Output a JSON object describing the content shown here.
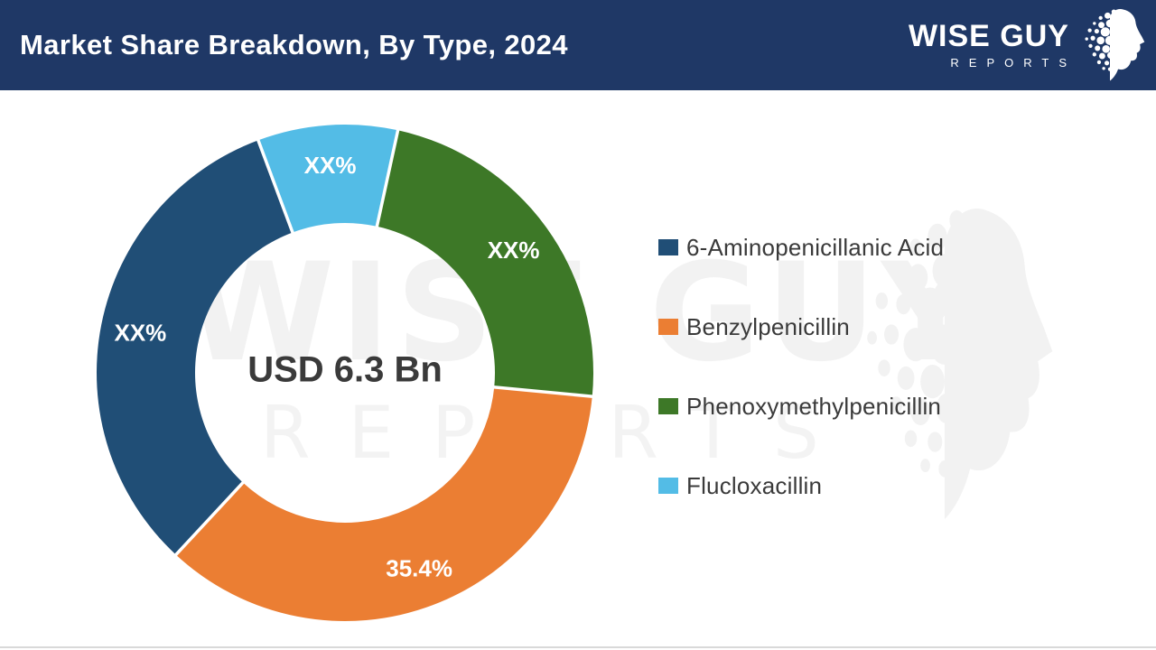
{
  "header": {
    "title": "Market Share Breakdown, By Type, 2024",
    "background": "#1F3866",
    "logo": {
      "line1": "WISE GUY",
      "line2": "REPORTS"
    }
  },
  "watermark": {
    "line1": "WISE GUY",
    "line2": "REPORTS"
  },
  "chart_data": {
    "type": "pie",
    "subtype": "donut",
    "title": "Market Share Breakdown, By Type, 2024",
    "center_label": "USD 6.3 Bn",
    "start_angle_deg": 222.9,
    "legend_position": "right",
    "segments": [
      {
        "name": "6-Aminopenicillanic Acid",
        "color": "#204E76",
        "percent": 32.4,
        "data_label": "XX%"
      },
      {
        "name": "Flucloxacillin",
        "color": "#53BCE6",
        "percent": 9.1,
        "data_label": "XX%"
      },
      {
        "name": "Phenoxymethylpenicillin",
        "color": "#3D7827",
        "percent": 23.1,
        "data_label": "XX%"
      },
      {
        "name": "Benzylpenicillin",
        "color": "#EB7E33",
        "percent": 35.4,
        "data_label": "35.4%"
      }
    ],
    "legend": {
      "items": [
        {
          "label": "6-Aminopenicillanic Acid",
          "color": "#204E76"
        },
        {
          "label": "Benzylpenicillin",
          "color": "#EB7E33"
        },
        {
          "label": "Phenoxymethylpenicillin",
          "color": "#3D7827"
        },
        {
          "label": "Flucloxacillin",
          "color": "#53BCE6"
        }
      ]
    }
  },
  "colors": {
    "header_bg": "#1F3866",
    "text_dark": "#3A3A3A",
    "watermark": "#F2F2F2",
    "divider": "#D9D9D9"
  }
}
